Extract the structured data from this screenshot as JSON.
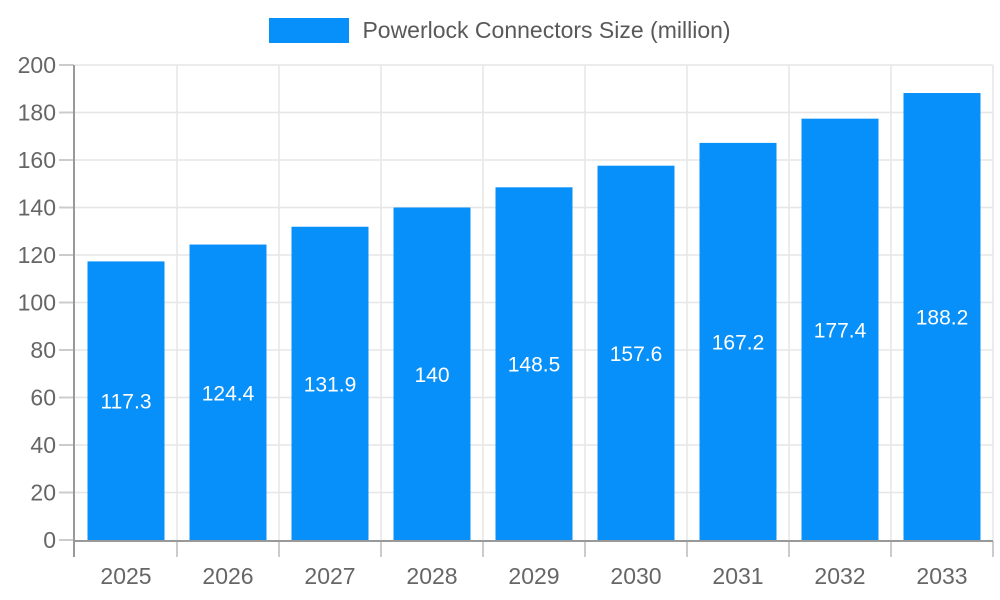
{
  "legend": {
    "label": "Powerlock Connectors Size (million)"
  },
  "colors": {
    "bar": "#0890FA",
    "grid": "#E6E6E6",
    "tick": "#CCCCCC",
    "axis": "#999999",
    "axis_label": "#666666",
    "legend_text": "#595959",
    "value_label": "#FFFFFF",
    "background": "#FFFFFF"
  },
  "chart_data": {
    "type": "bar",
    "title": "Powerlock Connectors Size (million)",
    "categories": [
      "2025",
      "2026",
      "2027",
      "2028",
      "2029",
      "2030",
      "2031",
      "2032",
      "2033"
    ],
    "values": [
      117.3,
      124.4,
      131.9,
      140,
      148.5,
      157.6,
      167.2,
      177.4,
      188.2
    ],
    "value_labels": [
      "117.3",
      "124.4",
      "131.9",
      "140",
      "148.5",
      "157.6",
      "167.2",
      "177.4",
      "188.2"
    ],
    "xlabel": "",
    "ylabel": "",
    "ylim": [
      0,
      200
    ],
    "ytick_step": 20,
    "ytick_labels": [
      "0",
      "20",
      "40",
      "60",
      "80",
      "100",
      "120",
      "140",
      "160",
      "180",
      "200"
    ],
    "grid": true,
    "legend_position": "top",
    "value_label_position": "center-of-bar"
  }
}
